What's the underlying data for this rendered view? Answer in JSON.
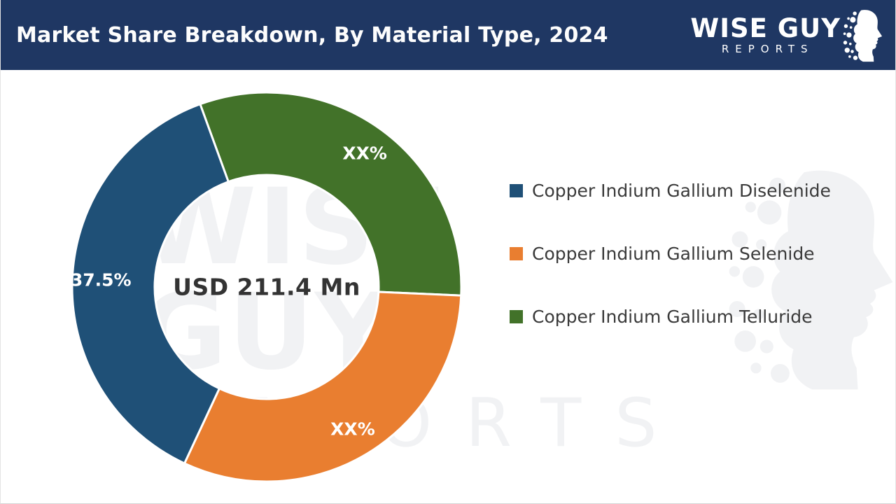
{
  "header": {
    "title": "Market Share Breakdown, By Material Type, 2024",
    "logo": {
      "line1": "WISE GUY",
      "line2": "REPORTS"
    }
  },
  "chart_data": {
    "type": "pie",
    "subtype": "donut",
    "title": "Market Share Breakdown, By Material Type, 2024",
    "center_label": "USD 211.4 Mn",
    "legend_position": "right",
    "slices": [
      {
        "name": "Copper Indium Gallium Telluride",
        "display_label": "XX%",
        "percent_estimate": 31.25,
        "color": "#427229",
        "start_deg": -20,
        "end_deg": 92.5
      },
      {
        "name": "Copper Indium Gallium Selenide",
        "display_label": "XX%",
        "percent_estimate": 31.25,
        "color": "#E97E30",
        "start_deg": 92.5,
        "end_deg": 205
      },
      {
        "name": "Copper Indium Gallium Diselenide",
        "display_label": "37.5%",
        "percent": 37.5,
        "color": "#1F5077",
        "start_deg": 205,
        "end_deg": 340
      }
    ],
    "legend_order": [
      2,
      1,
      0
    ]
  }
}
